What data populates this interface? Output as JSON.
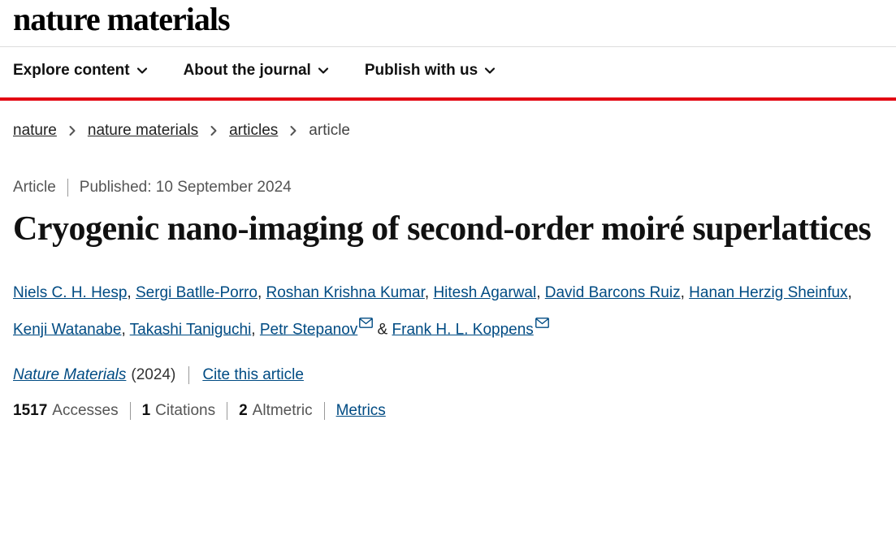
{
  "brand": "nature materials",
  "nav": [
    {
      "label": "Explore content"
    },
    {
      "label": "About the journal"
    },
    {
      "label": "Publish with us"
    }
  ],
  "breadcrumbs": [
    {
      "label": "nature",
      "link": true
    },
    {
      "label": "nature materials",
      "link": true
    },
    {
      "label": "articles",
      "link": true
    },
    {
      "label": "article",
      "link": false
    }
  ],
  "meta": {
    "type": "Article",
    "published": "Published: 10 September 2024"
  },
  "title": "Cryogenic nano-imaging of second-order moiré superlattices",
  "authors": [
    {
      "name": "Niels C. H. Hesp",
      "mail": false
    },
    {
      "name": "Sergi Batlle-Porro",
      "mail": false
    },
    {
      "name": "Roshan Krishna Kumar",
      "mail": false
    },
    {
      "name": "Hitesh Agarwal",
      "mail": false
    },
    {
      "name": "David Barcons Ruiz",
      "mail": false
    },
    {
      "name": "Hanan Herzig Sheinfux",
      "mail": false
    },
    {
      "name": "Kenji Watanabe",
      "mail": false
    },
    {
      "name": "Takashi Taniguchi",
      "mail": false
    },
    {
      "name": "Petr Stepanov",
      "mail": true
    },
    {
      "name": "Frank H. L. Koppens",
      "mail": true
    }
  ],
  "journal": {
    "name": "Nature Materials",
    "year": "(2024)",
    "cite": "Cite this article"
  },
  "metrics": {
    "accesses": {
      "value": "1517",
      "label": "Accesses"
    },
    "citations": {
      "value": "1",
      "label": "Citations"
    },
    "altmetric": {
      "value": "2",
      "label": "Altmetric"
    },
    "link": "Metrics"
  },
  "colors": {
    "accent_red": "#e30613",
    "link_blue": "#004b83",
    "text": "#222222",
    "muted": "#555555"
  }
}
